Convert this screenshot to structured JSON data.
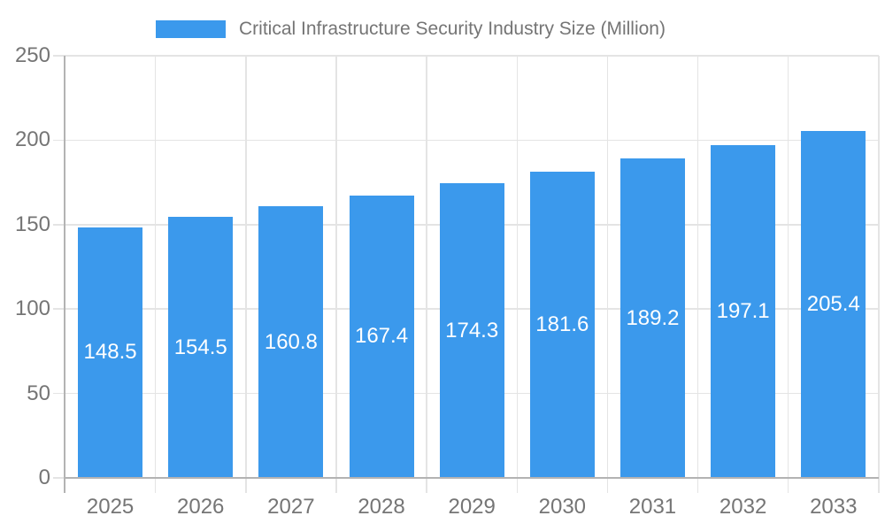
{
  "chart_data": {
    "type": "bar",
    "title": "Critical Infrastructure Security Industry Size (Million)",
    "categories": [
      "2025",
      "2026",
      "2027",
      "2028",
      "2029",
      "2030",
      "2031",
      "2032",
      "2033"
    ],
    "series": [
      {
        "name": "Critical Infrastructure Security Industry Size (Million)",
        "values": [
          148.5,
          154.5,
          160.8,
          167.4,
          174.3,
          181.6,
          189.2,
          197.1,
          205.4
        ]
      }
    ],
    "value_labels": [
      "148.5",
      "154.5",
      "160.8",
      "167.4",
      "174.3",
      "181.6",
      "189.2",
      "197.1",
      "205.4"
    ],
    "xlabel": "",
    "ylabel": "",
    "ylim": [
      0,
      250
    ],
    "yticks": [
      0,
      50,
      100,
      150,
      200,
      250
    ],
    "grid": {
      "horizontal": true,
      "vertical": true
    },
    "legend_position": "top"
  },
  "colors": {
    "bar": "#3b99ec",
    "bar_label": "#ffffff",
    "axis_line": "#b3b3b3",
    "gridline": "#e4e4e4",
    "text": "#757575"
  }
}
